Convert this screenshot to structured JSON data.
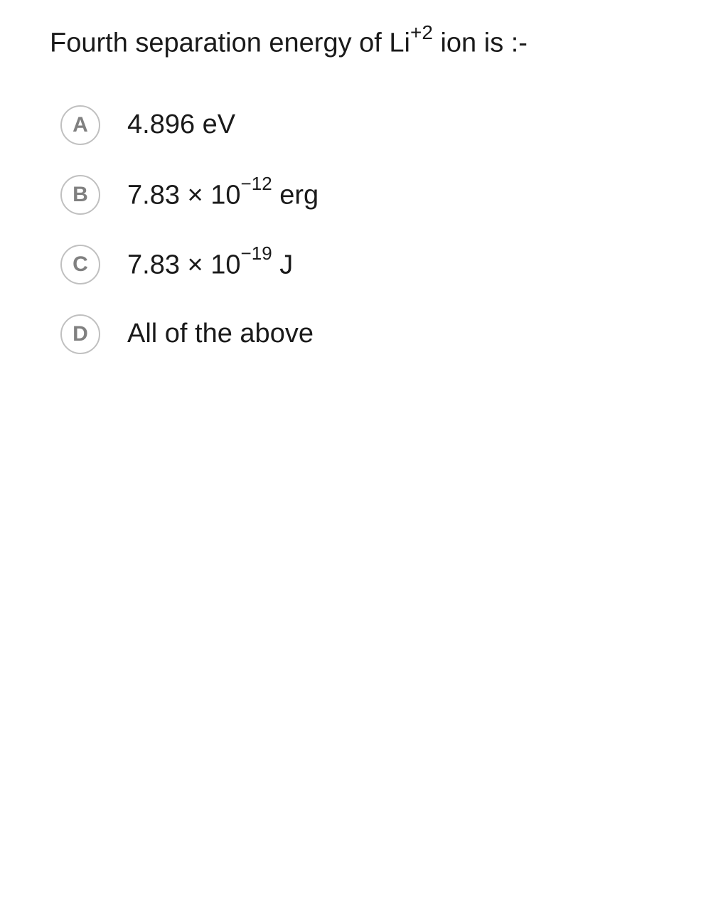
{
  "question": {
    "prefix": "Fourth separation energy of Li",
    "superscript": "+2",
    "suffix": " ion is :-",
    "text_color": "#1a1a1a",
    "fontsize": 38
  },
  "options": [
    {
      "letter": "A",
      "text_parts": {
        "full": "4.896 eV"
      }
    },
    {
      "letter": "B",
      "text_parts": {
        "prefix": "7.83 × 10",
        "exponent": "−12",
        "suffix": " erg"
      }
    },
    {
      "letter": "C",
      "text_parts": {
        "prefix": "7.83 × 10",
        "exponent": "−19",
        "suffix": " J"
      }
    },
    {
      "letter": "D",
      "text_parts": {
        "full": "All of the above"
      }
    }
  ],
  "styling": {
    "background_color": "#ffffff",
    "option_circle_border_color": "#c0c0c0",
    "option_letter_color": "#808080",
    "option_text_color": "#1a1a1a",
    "option_circle_size": 56,
    "option_letter_fontsize": 30,
    "option_text_fontsize": 38,
    "question_fontsize": 38,
    "superscript_fontsize": 28
  }
}
